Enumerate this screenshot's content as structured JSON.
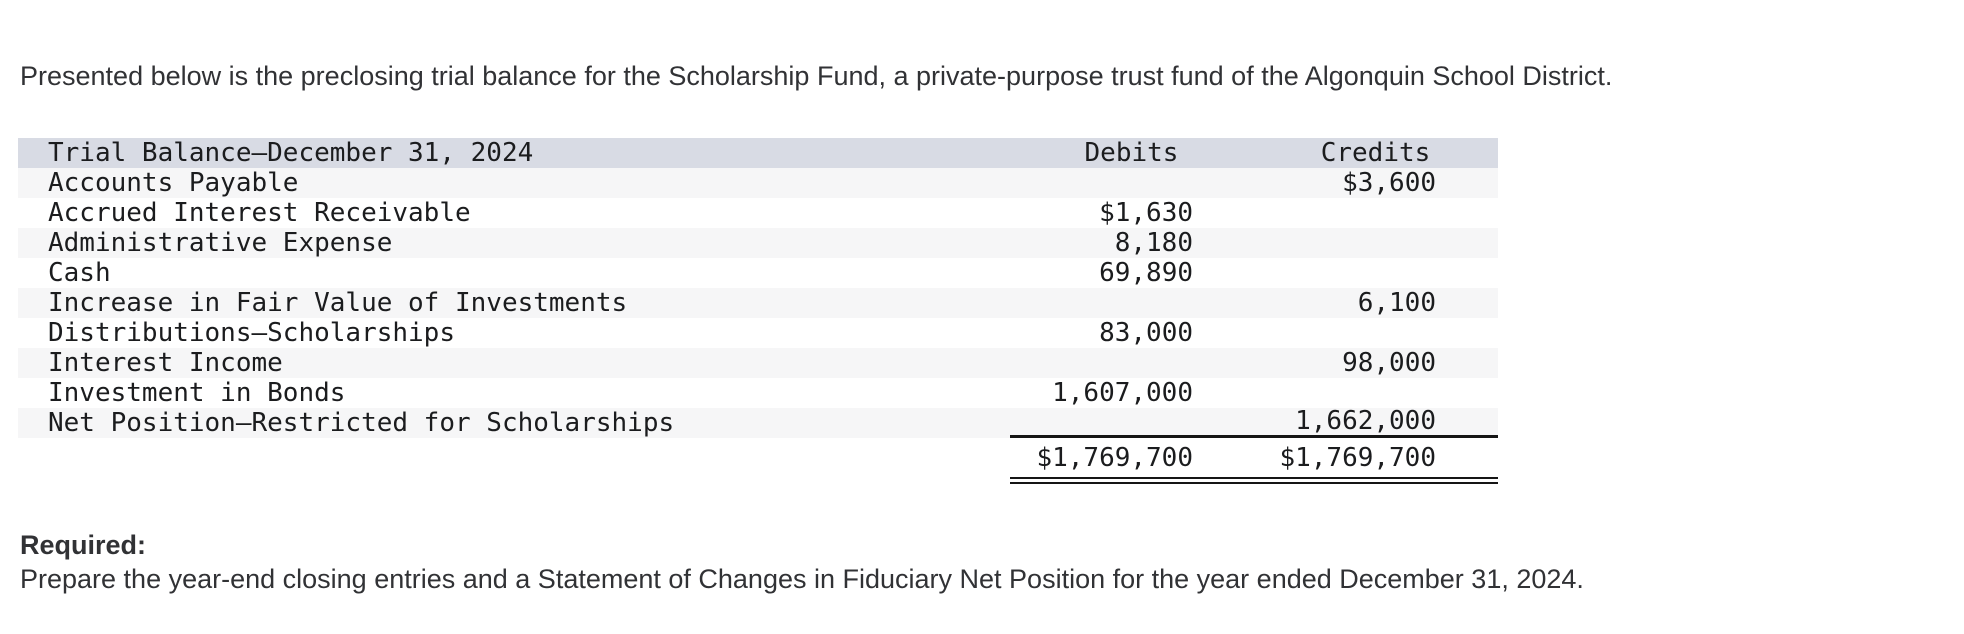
{
  "intro": "Presented below is the preclosing trial balance for the Scholarship Fund, a private-purpose trust fund of the Algonquin School District.",
  "table": {
    "header": {
      "title": "Trial Balance—December 31, 2024",
      "debits": "Debits",
      "credits": "Credits"
    },
    "rows": [
      {
        "label": "Accounts Payable",
        "debit": "",
        "credit": "$3,600"
      },
      {
        "label": "Accrued Interest Receivable",
        "debit": "$1,630",
        "credit": ""
      },
      {
        "label": "Administrative Expense",
        "debit": "8,180",
        "credit": ""
      },
      {
        "label": "Cash",
        "debit": "69,890",
        "credit": ""
      },
      {
        "label": "Increase in Fair Value of Investments",
        "debit": "",
        "credit": "6,100"
      },
      {
        "label": "Distributions—Scholarships",
        "debit": "83,000",
        "credit": ""
      },
      {
        "label": "Interest Income",
        "debit": "",
        "credit": "98,000"
      },
      {
        "label": "Investment in Bonds",
        "debit": "1,607,000",
        "credit": ""
      },
      {
        "label": "Net Position—Restricted for Scholarships",
        "debit": "",
        "credit": "1,662,000"
      }
    ],
    "totals": {
      "debit": "$1,769,700",
      "credit": "$1,769,700"
    }
  },
  "required": {
    "heading": "Required:",
    "text": "Prepare the year-end closing entries and a Statement of Changes in Fiduciary Net Position for the year ended December 31, 2024."
  },
  "colors": {
    "header_row_bg": "#d8dbe4",
    "zebra_row_bg": "#f6f6f7",
    "rule_color": "#151515",
    "text_color": "#313235"
  }
}
